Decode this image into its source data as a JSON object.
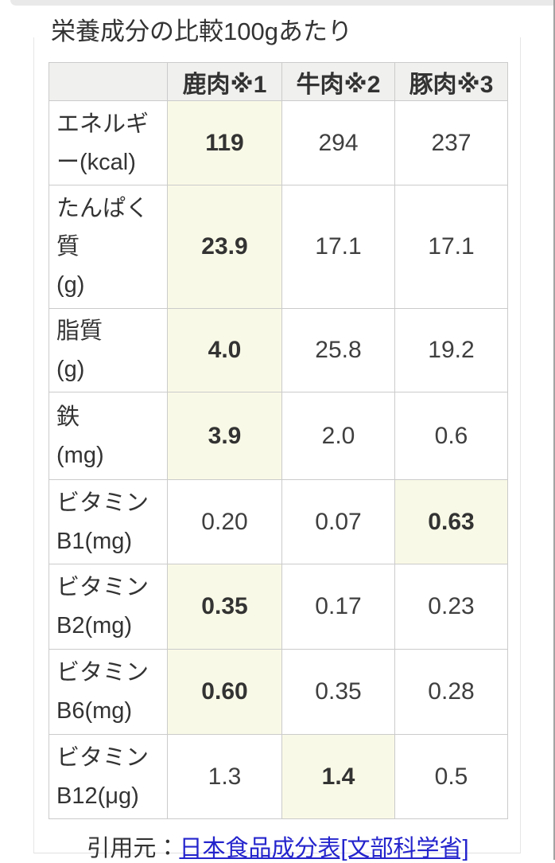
{
  "page": {
    "title": "栄養成分の比較100gあたり",
    "source": {
      "prefix": "引用元：",
      "link_text": "日本食品成分表[文部科学省]"
    }
  },
  "table": {
    "headers": [
      "",
      "鹿肉※1",
      "牛肉※2",
      "豚肉※3"
    ],
    "rows": [
      {
        "label": "エネルギ\nー(kcal)",
        "values": [
          "119",
          "294",
          "237"
        ],
        "highlight": 0
      },
      {
        "label": "たんぱく\n質\n(g)",
        "values": [
          "23.9",
          "17.1",
          "17.1"
        ],
        "highlight": 0
      },
      {
        "label": "脂質\n(g)",
        "values": [
          "4.0",
          "25.8",
          "19.2"
        ],
        "highlight": 0
      },
      {
        "label": "鉄\n(mg)",
        "values": [
          "3.9",
          "2.0",
          "0.6"
        ],
        "highlight": 0
      },
      {
        "label": "ビタミン\nB1(mg)",
        "values": [
          "0.20",
          "0.07",
          "0.63"
        ],
        "highlight": 2
      },
      {
        "label": "ビタミン\nB2(mg)",
        "values": [
          "0.35",
          "0.17",
          "0.23"
        ],
        "highlight": 0
      },
      {
        "label": "ビタミン\nB6(mg)",
        "values": [
          "0.60",
          "0.35",
          "0.28"
        ],
        "highlight": 0
      },
      {
        "label": "ビタミン\nB12(μg)",
        "values": [
          "1.3",
          "1.4",
          "0.5"
        ],
        "highlight": 1
      }
    ]
  },
  "colors": {
    "highlight_bg": "#f9f9e7",
    "header_bg": "#f0f0ef",
    "border": "#cbcbcb",
    "text": "#333333",
    "link_blue": "#2424cd",
    "top_strip": "#e9e9e9"
  }
}
